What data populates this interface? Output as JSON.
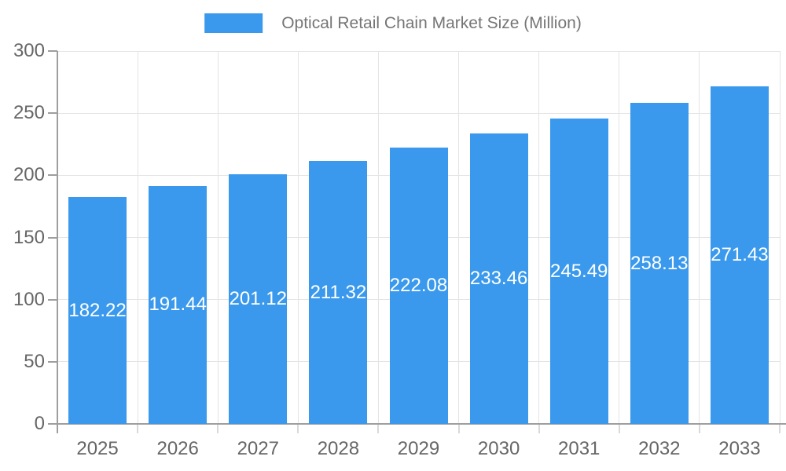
{
  "legend": {
    "label": "Optical Retail Chain Market Size (Million)"
  },
  "chart_data": {
    "type": "bar",
    "title": "Optical Retail Chain Market Size (Million)",
    "categories": [
      "2025",
      "2026",
      "2027",
      "2028",
      "2029",
      "2030",
      "2031",
      "2032",
      "2033"
    ],
    "values": [
      182.22,
      191.44,
      201.12,
      211.32,
      222.08,
      233.46,
      245.49,
      258.13,
      271.43
    ],
    "series_name": "Optical Retail Chain Market Size (Million)",
    "xlabel": "",
    "ylabel": "",
    "ylim": [
      0,
      300
    ],
    "yticks": [
      0,
      50,
      100,
      150,
      200,
      250,
      300
    ],
    "grid": true,
    "legend_position": "top",
    "value_labels": "centered-in-bar"
  },
  "colors": {
    "bar": "#3a99ec",
    "grid": "#e4e4e4",
    "axis": "#9e9e9e",
    "minor_tick": "#d9d9d9",
    "axis_text": "#666666",
    "legend_text": "#757575",
    "bar_label_text": "#ffffff"
  }
}
